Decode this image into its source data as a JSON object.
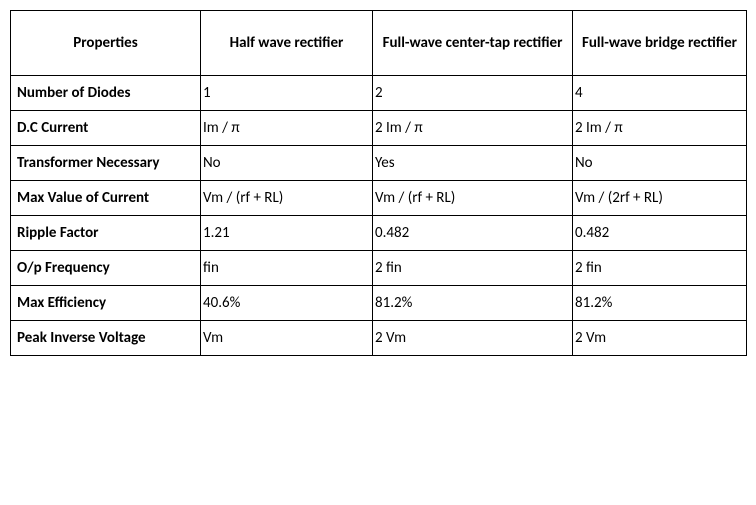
{
  "table": {
    "columns": [
      "Properties",
      "Half wave rectifier",
      "Full-wave center-tap rectifier",
      "Full-wave bridge rectifier"
    ],
    "rows": [
      {
        "prop": "Number of Diodes",
        "half": "1",
        "centertap": "2",
        "bridge": "4"
      },
      {
        "prop": "D.C Current",
        "half": "Im / π",
        "centertap": "2 Im / π",
        "bridge": "2 Im / π"
      },
      {
        "prop": "Transformer Necessary",
        "half": "No",
        "centertap": "Yes",
        "bridge": "No"
      },
      {
        "prop": "Max Value of Current",
        "half": "Vm / (rf + RL)",
        "centertap": "Vm / (rf + RL)",
        "bridge": "Vm / (2rf + RL)"
      },
      {
        "prop": "Ripple Factor",
        "half": "1.21",
        "centertap": "0.482",
        "bridge": "0.482"
      },
      {
        "prop": "O/p Frequency",
        "half": "fin",
        "centertap": "2 fin",
        "bridge": "2 fin"
      },
      {
        "prop": "Max Efficiency",
        "half": "40.6%",
        "centertap": "81.2%",
        "bridge": "81.2%"
      },
      {
        "prop": "Peak Inverse Voltage",
        "half": "Vm",
        "centertap": "2 Vm",
        "bridge": "2 Vm"
      }
    ],
    "border_color": "#000000",
    "background_color": "#ffffff",
    "header_fontweight": "bold",
    "cell_fontsize": 15
  }
}
